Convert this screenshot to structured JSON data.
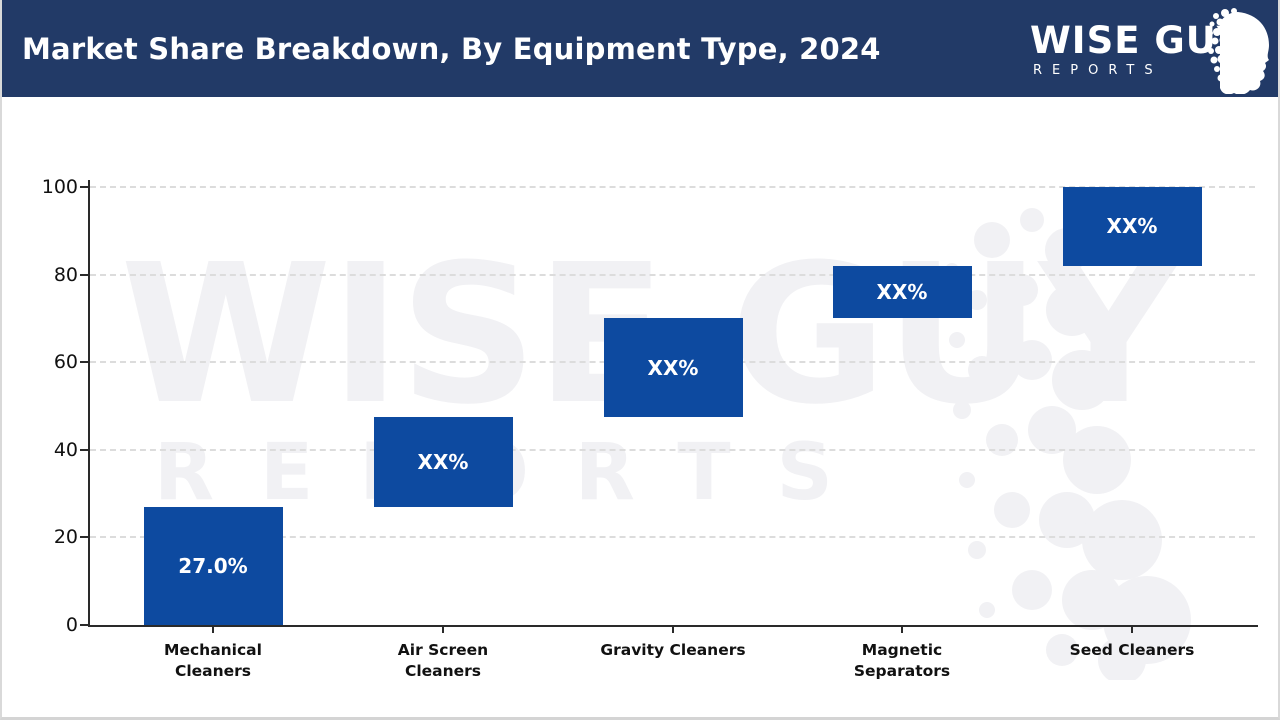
{
  "header": {
    "title": "Market Share Breakdown, By Equipment Type, 2024",
    "logo": {
      "brand": "WISE GUY",
      "sub": "REPORTS"
    }
  },
  "watermark": {
    "line1": "WISE GUY",
    "line2": "REPORTS"
  },
  "chart_data": {
    "type": "bar",
    "subtype": "waterfall",
    "title": "Market Share Breakdown, By Equipment Type, 2024",
    "categories": [
      "Mechanical Cleaners",
      "Air Screen Cleaners",
      "Gravity Cleaners",
      "Magnetic Separators",
      "Seed Cleaners"
    ],
    "categories_wrapped": [
      [
        "Mechanical",
        "Cleaners"
      ],
      [
        "Air Screen",
        "Cleaners"
      ],
      [
        "Gravity Cleaners"
      ],
      [
        "Magnetic",
        "Separators"
      ],
      [
        "Seed Cleaners"
      ]
    ],
    "series": [
      {
        "name": "Market Share",
        "segments": [
          {
            "category": "Mechanical Cleaners",
            "start": 0,
            "end": 27.0,
            "value": 27.0,
            "label": "27.0%"
          },
          {
            "category": "Air Screen Cleaners",
            "start": 27.0,
            "end": 47.5,
            "value": 20.5,
            "label": "XX%"
          },
          {
            "category": "Gravity Cleaners",
            "start": 47.5,
            "end": 70.0,
            "value": 22.5,
            "label": "XX%"
          },
          {
            "category": "Magnetic Separators",
            "start": 70.0,
            "end": 82.0,
            "value": 12.0,
            "label": "XX%"
          },
          {
            "category": "Seed Cleaners",
            "start": 82.0,
            "end": 100.0,
            "value": 18.0,
            "label": "XX%"
          }
        ]
      }
    ],
    "xlabel": "",
    "ylabel": "",
    "ylim": [
      0,
      100
    ],
    "yticks": [
      0,
      20,
      40,
      60,
      80,
      100
    ],
    "ytick_labels": [
      "0",
      "20",
      "40",
      "60",
      "80",
      "100"
    ],
    "legend": false,
    "grid": {
      "horizontal": true,
      "style": "dashed"
    }
  },
  "colors": {
    "header_bg": "#223a67",
    "bar": "#0d4aa0",
    "bar_label": "#ffffff",
    "grid": "#dcdcdc",
    "axis": "#2a2a2a",
    "watermark": "#f1f1f4"
  }
}
